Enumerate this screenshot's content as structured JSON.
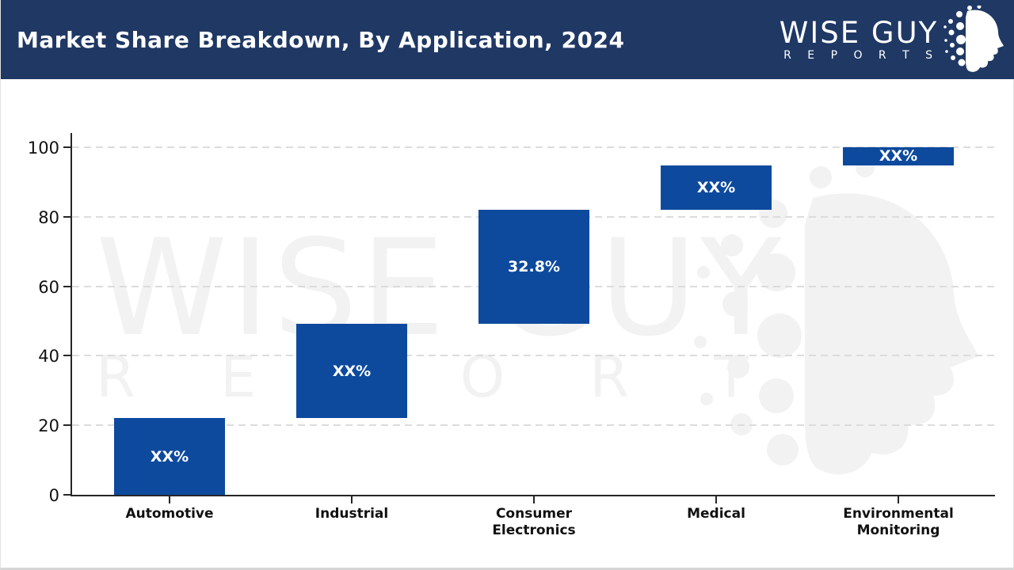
{
  "header": {
    "title": "Market Share Breakdown, By Application, 2024",
    "bg_color": "#1f3864",
    "logo": {
      "line1": "WISE GUY",
      "line2": "R E P O R T S"
    }
  },
  "watermark": {
    "line1": "WISE GUY",
    "line2": "R E P O R T S"
  },
  "chart_data": {
    "type": "bar",
    "subtype": "waterfall",
    "title": "Market Share Breakdown, By Application, 2024",
    "xlabel": "",
    "ylabel": "",
    "categories": [
      "Automotive",
      "Industrial",
      "Consumer Electronics",
      "Medical",
      "Environmental Monitoring"
    ],
    "bars": [
      {
        "label": "Automotive",
        "start": 0,
        "end": 22,
        "value_label": "XX%"
      },
      {
        "label": "Industrial",
        "start": 22,
        "end": 49.2,
        "value_label": "XX%"
      },
      {
        "label": "Consumer Electronics",
        "start": 49.2,
        "end": 82,
        "value_label": "32.8%"
      },
      {
        "label": "Medical",
        "start": 82,
        "end": 94.8,
        "value_label": "XX%"
      },
      {
        "label": "Environmental Monitoring",
        "start": 94.8,
        "end": 100,
        "value_label": "XX%"
      }
    ],
    "y_ticks": [
      0,
      20,
      40,
      60,
      80,
      100
    ],
    "ylim": [
      0,
      104.5
    ],
    "bar_color": "#0d4a9e",
    "grid": "dashed-horizontal",
    "legend": "none"
  }
}
